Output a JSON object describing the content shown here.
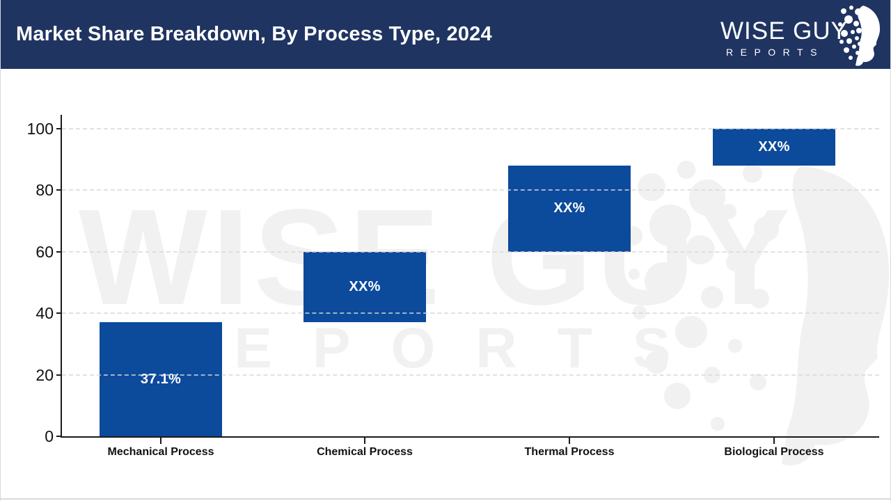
{
  "header": {
    "title": "Market Share Breakdown, By Process Type, 2024",
    "logo_line1": "WISE GUY",
    "logo_line2": "REPORTS"
  },
  "watermark": {
    "line1": "WISE GUY",
    "line2": "REPORTS"
  },
  "colors": {
    "header_bg": "#1f3461",
    "bar": "#0c4a9c",
    "bar_label": "#ffffff",
    "gridline": "#e0e0e0",
    "axis": "#1a1a1a",
    "watermark": "#f1f1f1"
  },
  "chart_data": {
    "type": "bar",
    "subtype": "waterfall",
    "title": "Market Share Breakdown, By Process Type, 2024",
    "xlabel": "",
    "ylabel": "",
    "categories": [
      "Mechanical Process",
      "Chemical Process",
      "Thermal Process",
      "Biological Process"
    ],
    "segments": [
      {
        "category": "Mechanical Process",
        "start": 0,
        "end": 37.1,
        "label": "37.1%"
      },
      {
        "category": "Chemical Process",
        "start": 37.1,
        "end": 60,
        "label": "XX%"
      },
      {
        "category": "Thermal Process",
        "start": 60,
        "end": 88,
        "label": "XX%"
      },
      {
        "category": "Biological Process",
        "start": 88,
        "end": 100,
        "label": "XX%"
      }
    ],
    "yticks": [
      0,
      20,
      40,
      60,
      80,
      100
    ],
    "ylim": [
      0,
      105
    ],
    "grid": "horizontal-dashed-over-bars",
    "legend": "none",
    "bar_color": "#0c4a9c",
    "value_label_color": "#ffffff"
  }
}
